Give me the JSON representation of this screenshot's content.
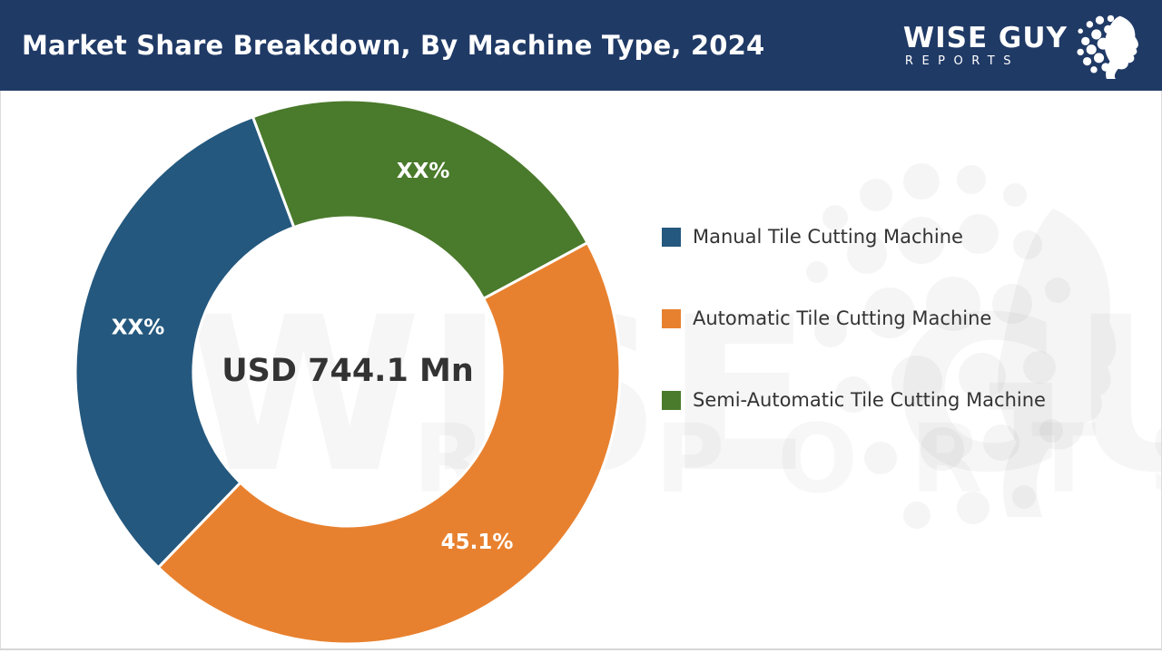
{
  "header": {
    "title": "Market Share Breakdown, By Machine Type, 2024",
    "bg_color": "#203a66",
    "logo": {
      "line1": "WISE GUY",
      "line2": "REPORTS"
    }
  },
  "watermark": {
    "line1": "WISE GUY",
    "line2": "REPORTS"
  },
  "chart_data": {
    "type": "pie",
    "subtype": "donut",
    "title": "Market Share Breakdown, By Machine Type, 2024",
    "center_text": "USD 744.1 Mn",
    "legend_position": "right",
    "start_angle_deg": -20.4,
    "draw_order": [
      2,
      1,
      0
    ],
    "segments": [
      {
        "label": "Manual Tile Cutting Machine",
        "display_label": "XX%",
        "value_pct": 32.1,
        "value_hidden": true,
        "color": "#24587e"
      },
      {
        "label": "Automatic Tile Cutting Machine",
        "display_label": "45.1%",
        "value_pct": 45.1,
        "value_hidden": false,
        "color": "#e8812f"
      },
      {
        "label": "Semi-Automatic Tile Cutting Machine",
        "display_label": "XX%",
        "value_pct": 22.8,
        "value_hidden": true,
        "color": "#4a7a2b"
      }
    ]
  },
  "colors": {
    "header_bg": "#203a66",
    "title_text": "#ffffff",
    "center_text": "#333333",
    "legend_text": "#333333",
    "slice_label_text": "#ffffff"
  }
}
